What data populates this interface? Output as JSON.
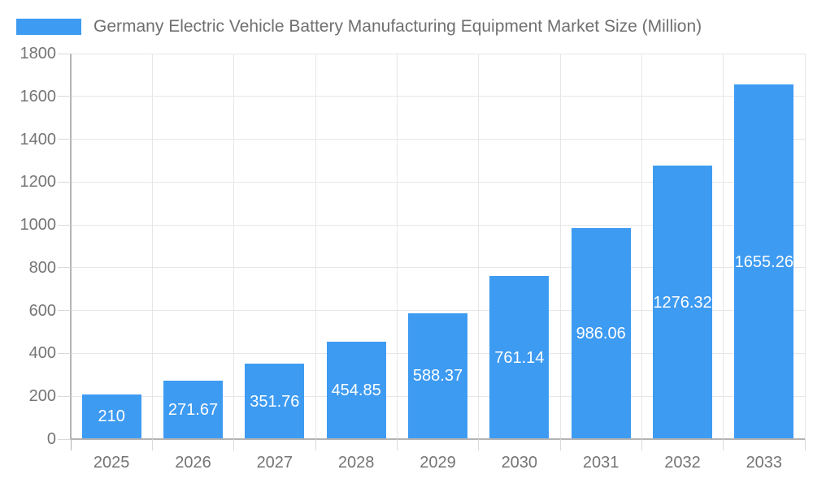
{
  "chart": {
    "legend_label": "Germany Electric Vehicle Battery Manufacturing Equipment Market Size (Million)",
    "colors": {
      "bar": "#3E9BF2",
      "grid": "#e7e7e7",
      "axis": "#b3b3b3",
      "tick": "#d9d9d9",
      "axis_text": "#757575",
      "title_text": "#6f6f6f",
      "annotation_text": "#ffffff",
      "background": "#ffffff"
    }
  },
  "chart_data": {
    "type": "bar",
    "title": "Germany Electric Vehicle Battery Manufacturing Equipment Market Size (Million)",
    "categories": [
      "2025",
      "2026",
      "2027",
      "2028",
      "2029",
      "2030",
      "2031",
      "2032",
      "2033"
    ],
    "series": [
      {
        "name": "Germany Electric Vehicle Battery Manufacturing Equipment Market Size (Million)",
        "values": [
          210,
          271.67,
          351.76,
          454.85,
          588.37,
          761.14,
          986.06,
          1276.32,
          1655.26
        ]
      }
    ],
    "value_labels": [
      "210",
      "271.67",
      "351.76",
      "454.85",
      "588.37",
      "761.14",
      "986.06",
      "1276.32",
      "1655.26"
    ],
    "xlabel": "",
    "ylabel": "",
    "ylim": [
      0,
      1800
    ],
    "ytick_step": 200,
    "ytick_labels": [
      "0",
      "200",
      "400",
      "600",
      "800",
      "1000",
      "1200",
      "1400",
      "1600",
      "1800"
    ],
    "grid": "both",
    "legend_position": "top-left",
    "annotation_position": "inside-center"
  }
}
